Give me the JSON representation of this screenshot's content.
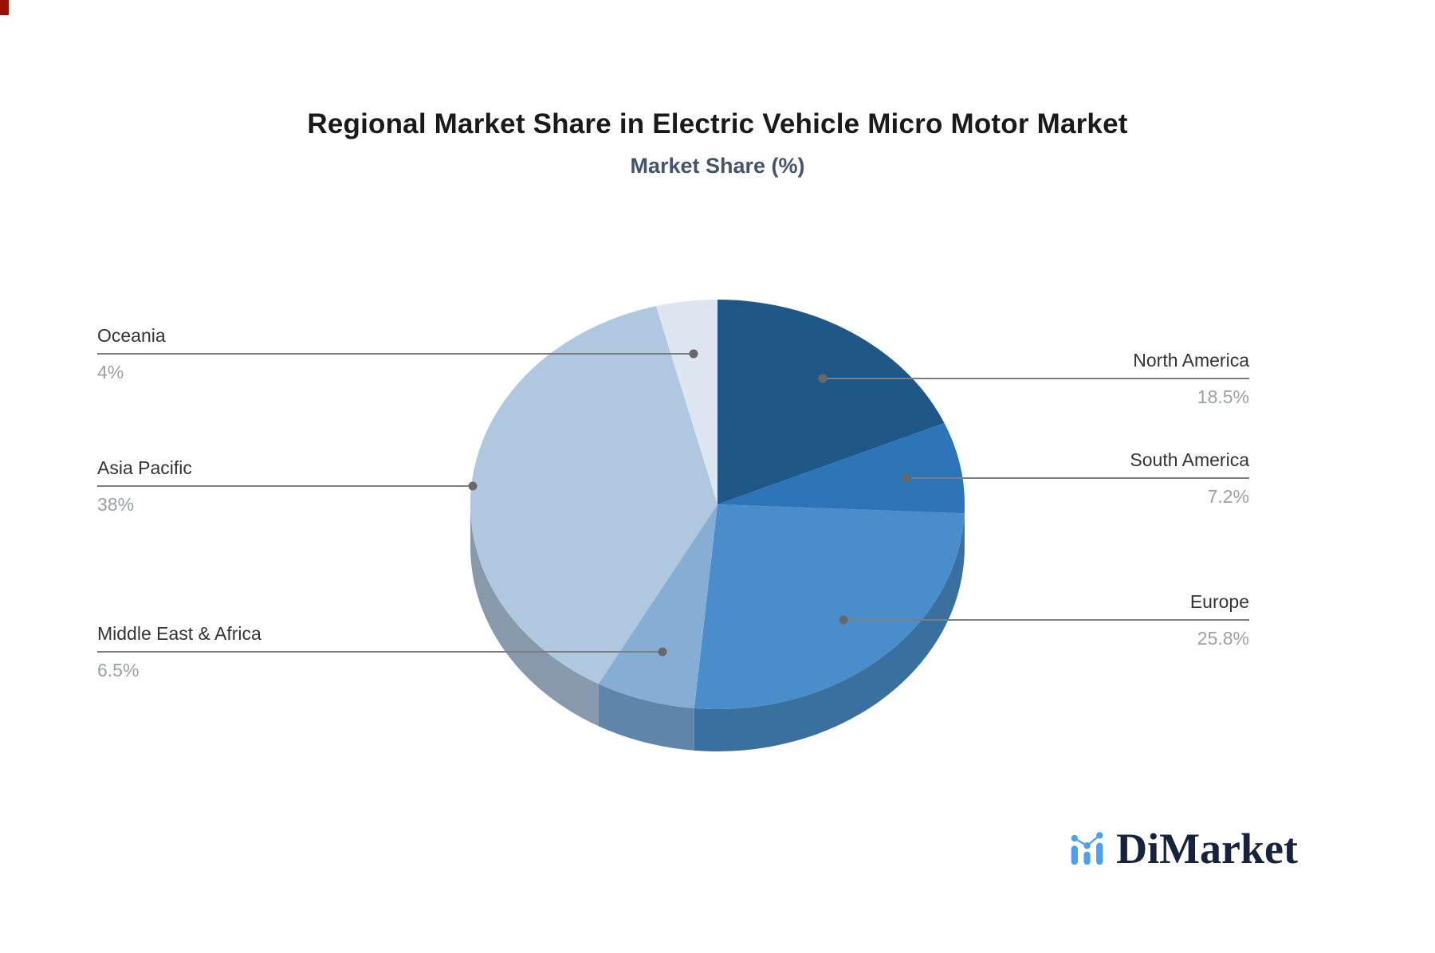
{
  "chart_data": {
    "type": "pie",
    "style": "3d",
    "title": "Regional Market Share in Electric Vehicle Micro Motor Market",
    "subtitle": "Market Share (%)",
    "unit": "%",
    "start_angle_deg": 0,
    "direction": "clockwise",
    "legend": "none",
    "slices": [
      {
        "label": "North America",
        "value": 18.5,
        "display": "18.5%",
        "color": "#1F5787",
        "side_color": "#17436B"
      },
      {
        "label": "South America",
        "value": 7.2,
        "display": "7.2%",
        "color": "#2E74B8",
        "side_color": "#235B92"
      },
      {
        "label": "Europe",
        "value": 25.8,
        "display": "25.8%",
        "color": "#4A8DCB",
        "side_color": "#3A70A0"
      },
      {
        "label": "Middle East & Africa",
        "value": 6.5,
        "display": "6.5%",
        "color": "#86ADD4",
        "side_color": "#5F86AA"
      },
      {
        "label": "Asia Pacific",
        "value": 38,
        "display": "38%",
        "color": "#AFC7DF",
        "side_color": "#8799AB"
      },
      {
        "label": "Oceania",
        "value": 4,
        "display": "4%",
        "color": "#DCE5F0",
        "side_color": "#AEB9C8"
      }
    ]
  },
  "branding": {
    "logo_text": "DiMarket",
    "logo_icon": "bar-chart-line-icon",
    "logo_color": "#4AA0F4",
    "logo_text_color": "#17233E"
  }
}
